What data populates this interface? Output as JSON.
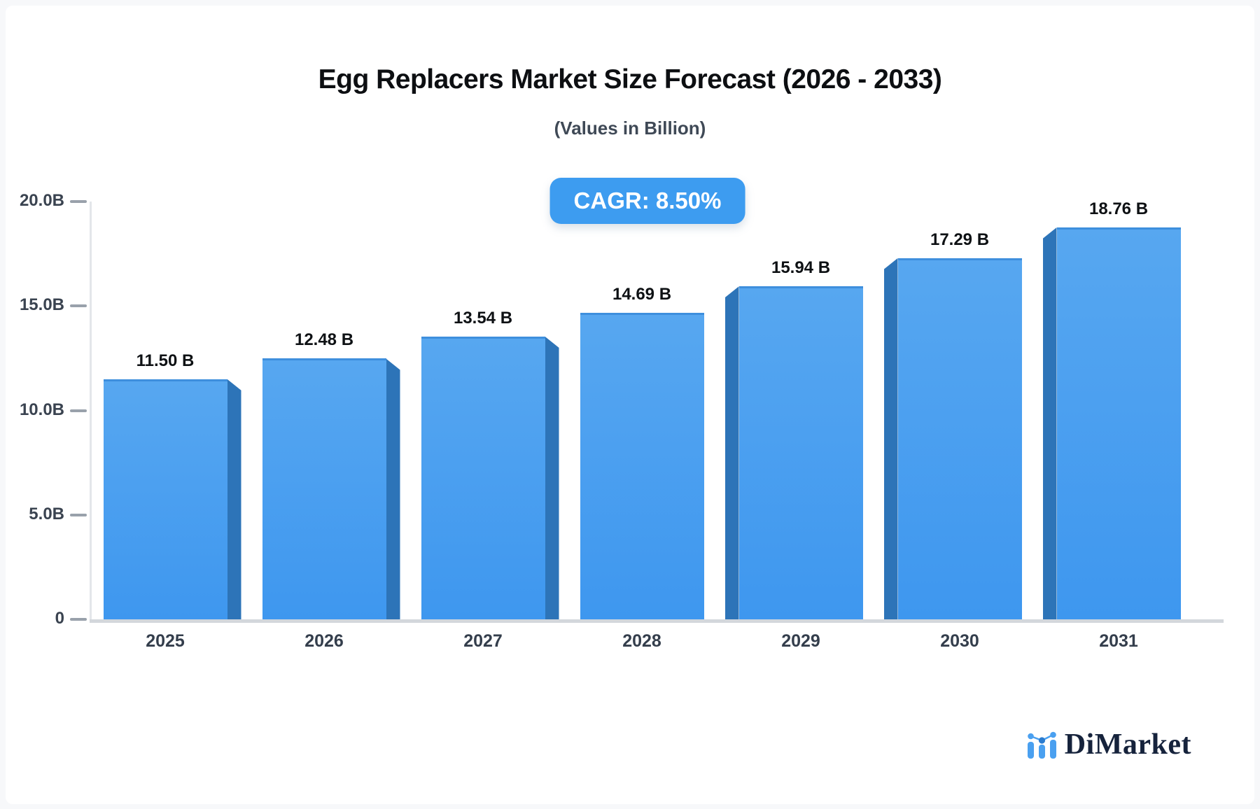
{
  "theme": {
    "page_bg": "#f7f8fa",
    "card_bg": "#ffffff",
    "title_color": "#0d0f12",
    "subtitle_color": "#3f4956",
    "badge_bg": "#3d9cf0",
    "badge_text": "#ffffff",
    "logo_text_color": "#16233c"
  },
  "header": {
    "title": "Egg Replacers Market Size Forecast (2026 - 2033)",
    "subtitle": "(Values in Billion)"
  },
  "badge": {
    "label": "CAGR: 8.50%"
  },
  "chart_data": {
    "type": "bar",
    "title": "Egg Replacers Market Size Forecast (2026 - 2033)",
    "subtitle": "(Values in Billion)",
    "cagr": "8.50%",
    "categories": [
      "2025",
      "2026",
      "2027",
      "2028",
      "2029",
      "2030",
      "2031"
    ],
    "values": [
      11.5,
      12.48,
      13.54,
      14.69,
      15.94,
      17.29,
      18.76
    ],
    "value_labels": [
      "11.50 B",
      "12.48 B",
      "13.54 B",
      "14.69 B",
      "15.94 B",
      "17.29 B",
      "18.76 B"
    ],
    "unit": "Billion",
    "ylim": [
      0,
      20
    ],
    "y_ticks": [
      {
        "value": 0,
        "label": "0"
      },
      {
        "value": 5,
        "label": "5.0B"
      },
      {
        "value": 10,
        "label": "10.0B"
      },
      {
        "value": 15,
        "label": "15.0B"
      },
      {
        "value": 20,
        "label": "20.0B"
      }
    ],
    "grid": false,
    "legend": "none",
    "colors": {
      "bar_face_top": "#57a7f0",
      "bar_face_bottom": "#3e97ef",
      "bar_top_edge": "#3e8fdd",
      "bar_side": "#2d74b8",
      "axis_line": "#e3e6ea",
      "baseline": "#d3d7dc",
      "tick_dash": "#99a1ab",
      "tick_label": "#3a4350",
      "x_label": "#343e4c",
      "value_label": "#0e1114"
    }
  },
  "logo": {
    "text": "DiMarket",
    "icon": "mini-bar-line-chart-icon",
    "icon_bar_color": "#4aa0f0",
    "icon_dot_color": "#2b7cd0"
  }
}
